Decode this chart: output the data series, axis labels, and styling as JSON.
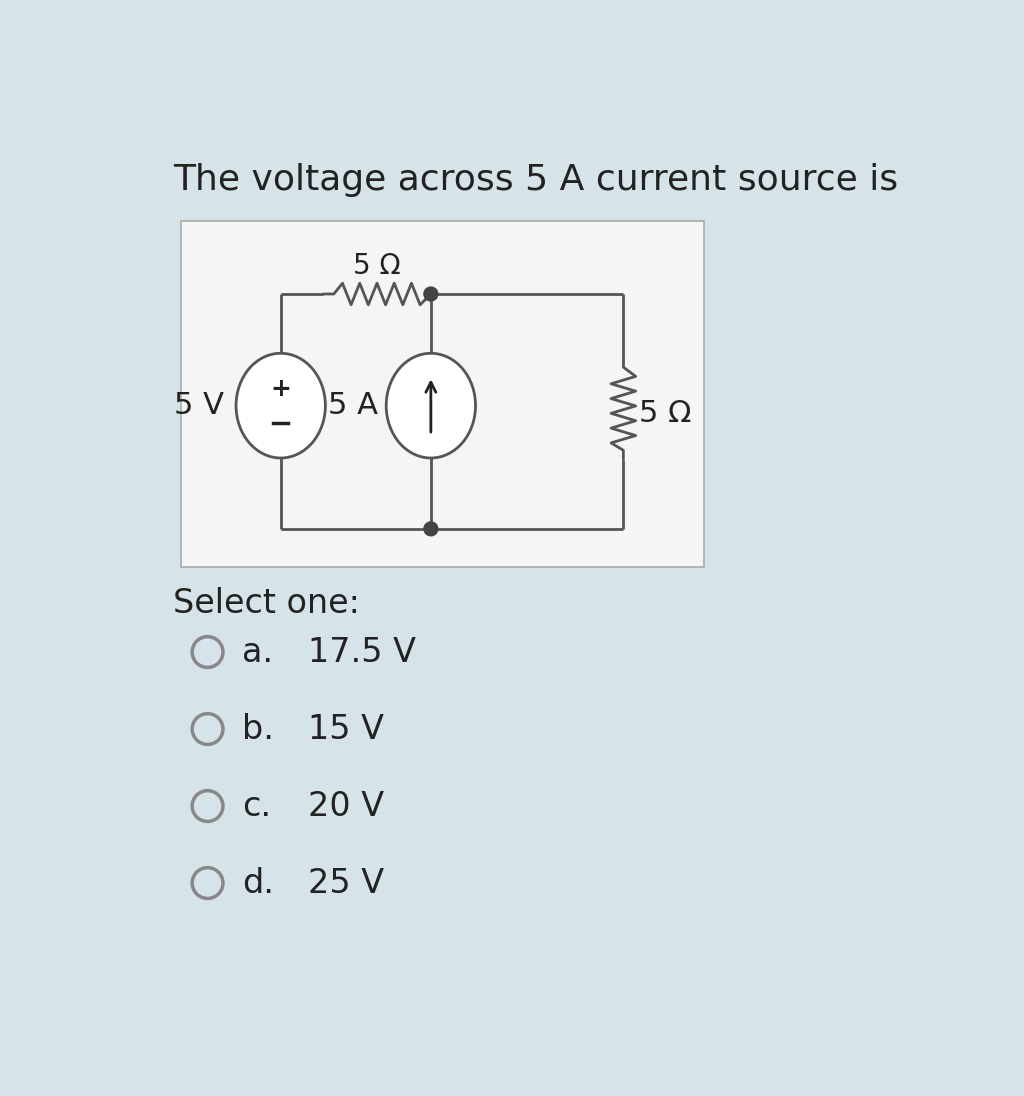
{
  "background_color": "#d6e4ea",
  "title": "The voltage across 5 A current source is",
  "title_fontsize": 26,
  "circuit_bg": "#f5f5f5",
  "circuit_border": "#aaaaaa",
  "options_labels": [
    "a.",
    "b.",
    "c.",
    "d."
  ],
  "options_values": [
    "17.5 V",
    "15 V",
    "20 V",
    "25 V"
  ],
  "select_text": "Select one:",
  "wire_color": "#555555",
  "text_color": "#222222",
  "option_circle_color": "#888888",
  "node_color": "#444444",
  "resistor_label": "5 Ω",
  "vs_label": "5 V",
  "cs_label": "5 A"
}
